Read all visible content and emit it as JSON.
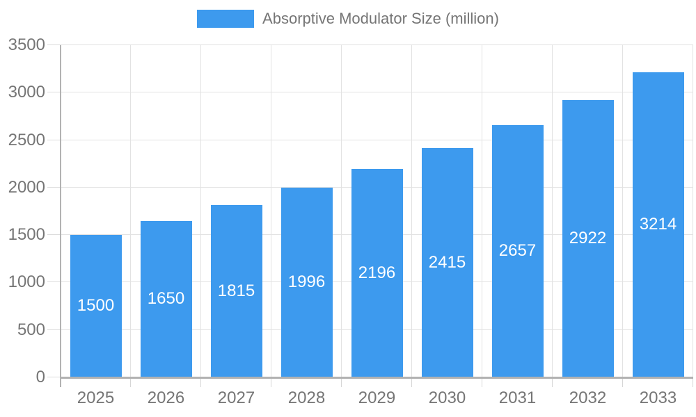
{
  "legend": {
    "label": "Absorptive Modulator Size (million)"
  },
  "colors": {
    "bar": "#3D9AEE",
    "axis_text": "#757575",
    "value_label_text": "#ffffff",
    "gridline": "#E2E2E2",
    "axis_line": "#B2B2B2",
    "background": "#ffffff"
  },
  "chart_data": {
    "type": "bar",
    "title": "",
    "xlabel": "",
    "ylabel": "",
    "categories": [
      "2025",
      "2026",
      "2027",
      "2028",
      "2029",
      "2030",
      "2031",
      "2032",
      "2033"
    ],
    "series": [
      {
        "name": "Absorptive Modulator Size (million)",
        "values": [
          1500,
          1650,
          1815,
          1996,
          2196,
          2415,
          2657,
          2922,
          3214
        ]
      }
    ],
    "ylim": [
      0,
      3500
    ],
    "yticks": [
      0,
      500,
      1000,
      1500,
      2000,
      2500,
      3000,
      3500
    ],
    "grid": true,
    "legend_position": "top-center",
    "value_labels_position": "inside-center",
    "bar_color": "#3D9AEE"
  }
}
